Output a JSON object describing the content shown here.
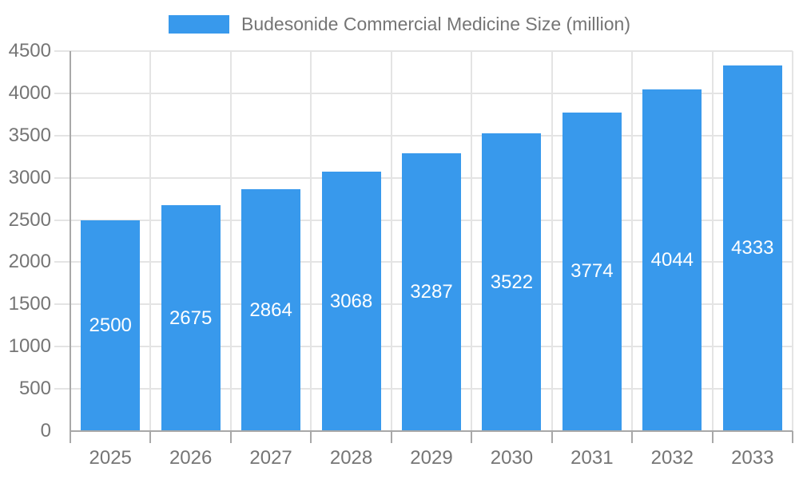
{
  "chart_data": {
    "type": "bar",
    "title": "Budesonide Commercial Medicine Size (million)",
    "legend_entries": [
      "Budesonide Commercial Medicine Size (million)"
    ],
    "legend_position": "top-center",
    "categories": [
      "2025",
      "2026",
      "2027",
      "2028",
      "2029",
      "2030",
      "2031",
      "2032",
      "2033"
    ],
    "values": [
      2500,
      2675,
      2864,
      3068,
      3287,
      3522,
      3774,
      4044,
      4333
    ],
    "xlabel": "",
    "ylabel": "",
    "ylim": [
      0,
      4500
    ],
    "ytick_step": 500,
    "ytick_labels": [
      "0",
      "500",
      "1000",
      "1500",
      "2000",
      "2500",
      "3000",
      "3500",
      "4000",
      "4500"
    ],
    "grid": true,
    "bar_value_labels_visible": true
  },
  "colors": {
    "bar": "#3899EC",
    "bar_value_label": "#FFFFFF",
    "gridline": "#E4E4E4",
    "axis_line": "#A8A8A8",
    "axis_text": "#757575",
    "legend_text": "#757575",
    "background": "#FFFFFF"
  }
}
